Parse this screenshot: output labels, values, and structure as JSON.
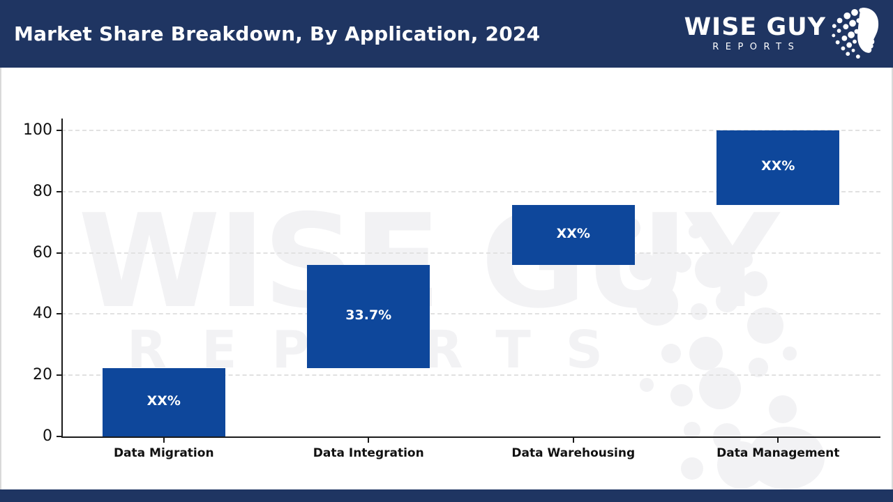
{
  "header": {
    "title": "Market Share Breakdown, By Application, 2024",
    "logo": {
      "name_line": "WISE GUY",
      "sub_line": "REPORTS"
    }
  },
  "watermark": {
    "line1": "WISE GUY",
    "line2": "REPORTS"
  },
  "colors": {
    "header_bg": "#1f3562",
    "bar": "#0e479b",
    "grid": "#e1e1e1",
    "axis": "#1a1a1a",
    "bar_label": "#ffffff",
    "watermark": "#f2f2f4"
  },
  "chart_data": {
    "type": "bar",
    "variant": "floating-waterfall",
    "title": "Market Share Breakdown, By Application, 2024",
    "categories": [
      "Data Migration",
      "Data Integration",
      "Data Warehousing",
      "Data Management"
    ],
    "series": [
      {
        "name": "Market Share (%)",
        "segments": [
          {
            "category": "Data Migration",
            "start": 0,
            "end": 22.4,
            "label": "XX%"
          },
          {
            "category": "Data Integration",
            "start": 22.4,
            "end": 56.1,
            "label": "33.7%"
          },
          {
            "category": "Data Warehousing",
            "start": 56.1,
            "end": 75.7,
            "label": "XX%"
          },
          {
            "category": "Data Management",
            "start": 75.7,
            "end": 100,
            "label": "XX%"
          }
        ]
      }
    ],
    "y_ticks": [
      0,
      20,
      40,
      60,
      80,
      100
    ],
    "ylim": [
      0,
      104
    ],
    "xlabel": "",
    "ylabel": "",
    "grid": "horizontal-dashed",
    "legend": "none"
  }
}
